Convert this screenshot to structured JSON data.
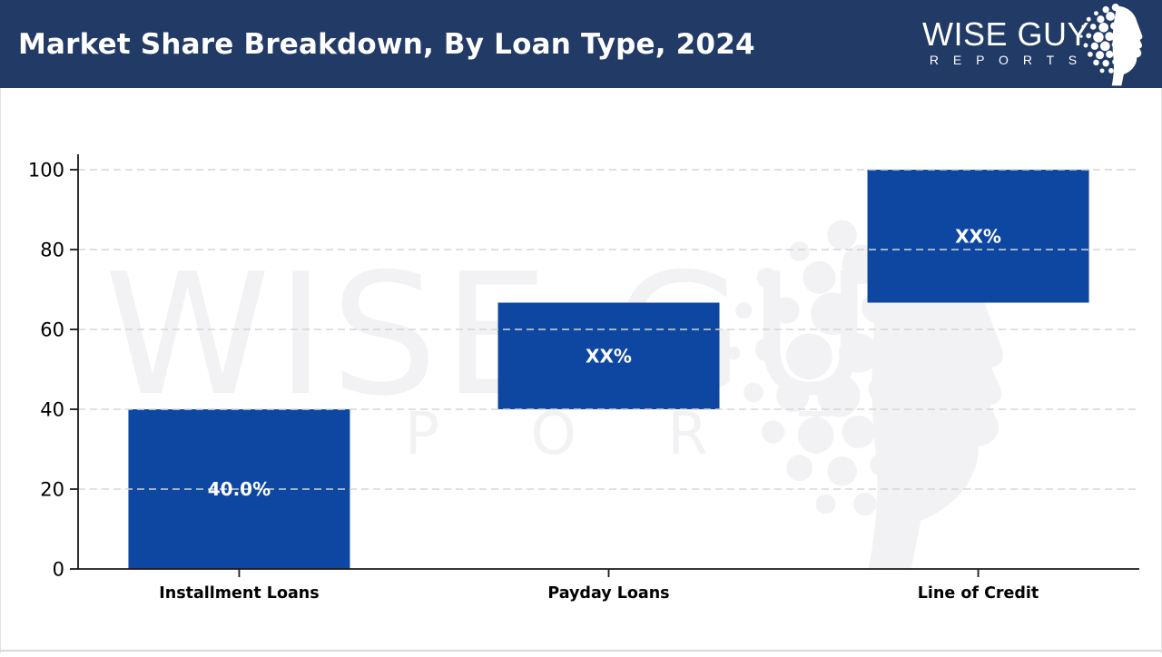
{
  "header": {
    "title": "Market Share Breakdown, By Loan Type, 2024",
    "bg_color": "#213a66",
    "logo": {
      "line1": "WISE GUY",
      "line2": "R E P O R T S",
      "icon": "dotted-head-profile-icon",
      "color": "#ffffff"
    }
  },
  "watermark": {
    "line1": "WISE GUY",
    "line2": "R E P O R T S",
    "icon": "dotted-head-profile-icon",
    "color": "#f2f2f4"
  },
  "chart_data": {
    "type": "bar",
    "subtype": "waterfall",
    "title": "Market Share Breakdown, By Loan Type, 2024",
    "xlabel": "",
    "ylabel": "",
    "categories": [
      "Installment Loans",
      "Payday Loans",
      "Line of Credit"
    ],
    "segments": [
      {
        "category": "Installment Loans",
        "start": 0,
        "end": 40,
        "label": "40.0%"
      },
      {
        "category": "Payday Loans",
        "start": 40,
        "end": 66.7,
        "label": "XX%"
      },
      {
        "category": "Line of Credit",
        "start": 66.7,
        "end": 100,
        "label": "XX%"
      }
    ],
    "ylim": [
      0,
      104
    ],
    "yticks": [
      0,
      20,
      40,
      60,
      80,
      100
    ],
    "grid": "horizontal-dashed-above-bars",
    "legend": "none",
    "bar_color": "#0d47a1",
    "bar_label_color": "#ffffff",
    "grid_color": "#d5d5d5",
    "axis_color": "#1a1a1a",
    "tick_label_color": "#000000"
  }
}
